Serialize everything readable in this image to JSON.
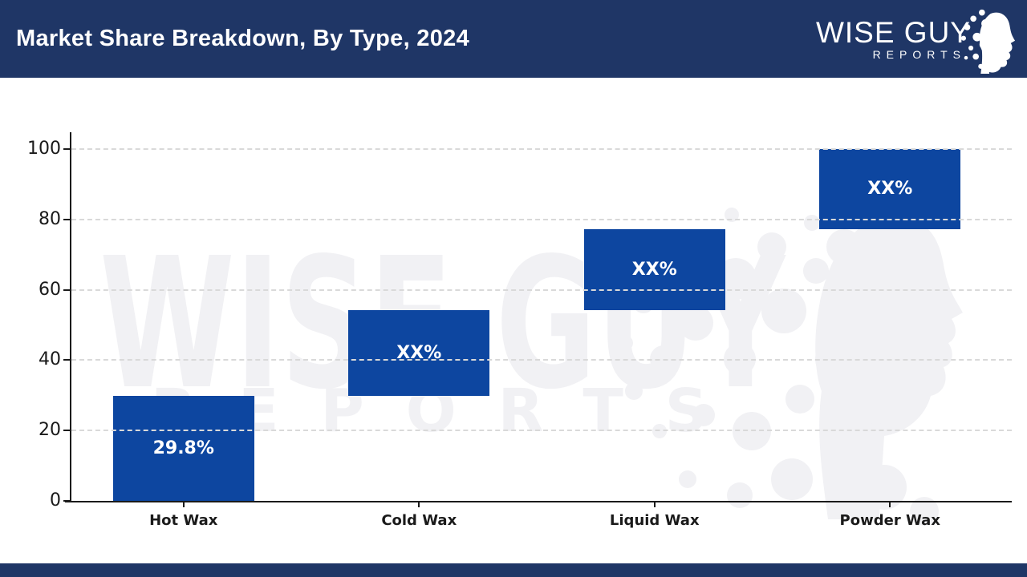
{
  "header": {
    "title": "Market Share Breakdown, By Type, 2024",
    "logo": {
      "primary": "WISE GUY",
      "secondary": "REPORTS"
    }
  },
  "watermark": {
    "line1": "WISE GUY",
    "line2": "REPORTS"
  },
  "colors": {
    "header_bg": "#1f3666",
    "footer_bg": "#1f3666",
    "bar": "#0d46a0",
    "bar_label": "#ffffff",
    "grid": "#d9d9d9",
    "axis": "#1a1a1a",
    "watermark": "#f1f1f4"
  },
  "chart_data": {
    "type": "bar",
    "subtype": "waterfall",
    "title": "Market Share Breakdown, By Type, 2024",
    "categories": [
      "Hot Wax",
      "Cold Wax",
      "Liquid Wax",
      "Powder Wax"
    ],
    "segments": [
      {
        "category": "Hot Wax",
        "start": 0,
        "end": 29.8,
        "label": "29.8%"
      },
      {
        "category": "Cold Wax",
        "start": 29.8,
        "end": 54.2,
        "label": "XX%"
      },
      {
        "category": "Liquid Wax",
        "start": 54.2,
        "end": 77.2,
        "label": "XX%"
      },
      {
        "category": "Powder Wax",
        "start": 77.2,
        "end": 100,
        "label": "XX%"
      }
    ],
    "xlabel": "",
    "ylabel": "",
    "ylim": [
      0,
      100
    ],
    "yticks": [
      0,
      20,
      40,
      60,
      80,
      100
    ],
    "grid": "horizontal dashed",
    "legend": "none",
    "bar_color": "#0d46a0",
    "value_label_color": "#ffffff"
  }
}
